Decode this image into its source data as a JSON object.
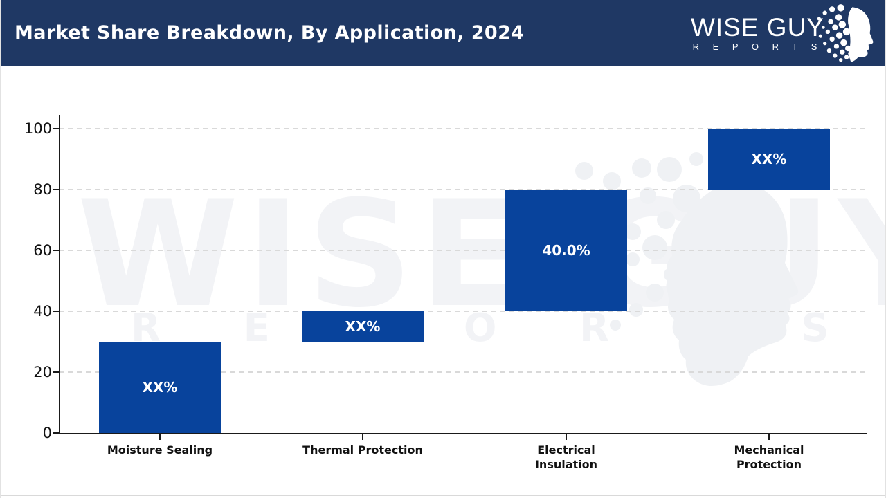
{
  "header": {
    "title": "Market Share Breakdown, By Application, 2024",
    "logo": {
      "brand_line1": "WISE GUY",
      "brand_line2": "R E P O R T S",
      "icon": "dotted-head-profile"
    }
  },
  "watermark": {
    "line1": "WISE GUY",
    "line2": "R E P O R T S",
    "icon": "dotted-head-profile"
  },
  "colors": {
    "header_bg": "#1f3864",
    "bar": "#08439c",
    "bar_label": "#ffffff",
    "grid": "#d9d9d9",
    "axis": "#1a1a1a",
    "tick_label": "#111111",
    "watermark": "#f2f3f6"
  },
  "chart_data": {
    "type": "bar",
    "subtype": "floating-range-bars",
    "title": "Market Share Breakdown, By Application, 2024",
    "categories": [
      "Moisture Sealing",
      "Thermal Protection",
      "Electrical Insulation",
      "Mechanical Protection"
    ],
    "category_lines": [
      [
        "Moisture Sealing"
      ],
      [
        "Thermal Protection"
      ],
      [
        "Electrical",
        "Insulation"
      ],
      [
        "Mechanical",
        "Protection"
      ]
    ],
    "series": [
      {
        "name": "Market Share (%)",
        "ranges": [
          [
            0,
            30
          ],
          [
            30,
            40
          ],
          [
            40,
            80
          ],
          [
            80,
            100
          ]
        ],
        "labels": [
          "XX%",
          "XX%",
          "40.0%",
          "XX%"
        ]
      }
    ],
    "xlabel": "",
    "ylabel": "",
    "ylim": [
      0,
      100
    ],
    "yticks": [
      0,
      20,
      40,
      60,
      80,
      100
    ],
    "grid": "horizontal-dashed",
    "legend": "none"
  }
}
